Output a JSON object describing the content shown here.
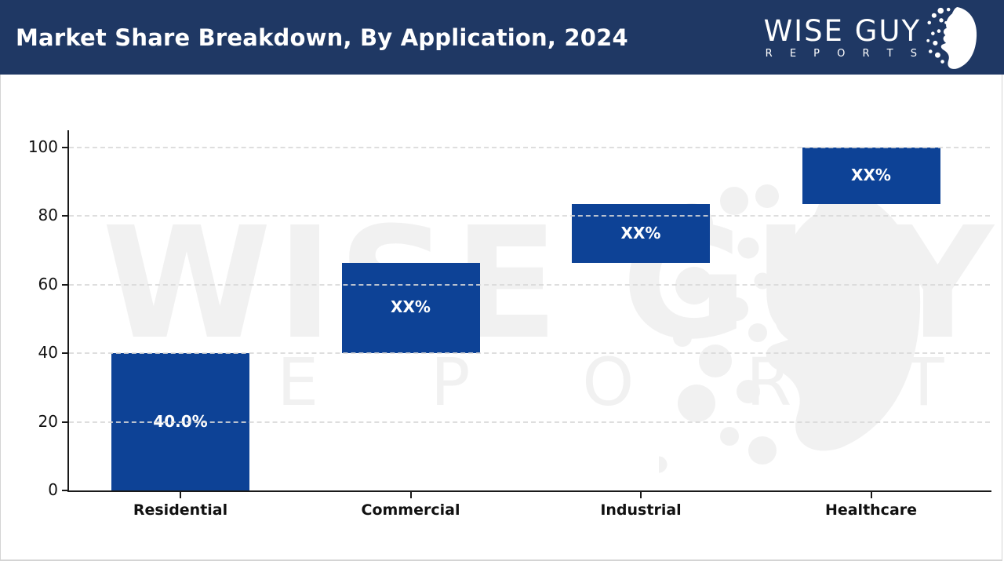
{
  "header": {
    "title": "Market Share Breakdown, By Application, 2024",
    "logo": {
      "line1": "WISE GUY",
      "line2": "R E P O R T S",
      "head_icon": "dotted-head-profile"
    }
  },
  "watermark": {
    "line1": "WISE GUY",
    "line2": "R E P O R T S",
    "head_icon": "dotted-head-profile"
  },
  "colors": {
    "header_bg": "#1f3864",
    "bar_fill": "#0d4296",
    "gridline": "#d9d9d9",
    "axis": "#1a1a1a",
    "bar_label_text": "#ffffff",
    "watermark": "#f1f1f1",
    "frame_border": "#d4d4d4"
  },
  "chart_data": {
    "type": "bar",
    "subtype": "waterfall",
    "title": "Market Share Breakdown, By Application, 2024",
    "categories": [
      "Residential",
      "Commercial",
      "Industrial",
      "Healthcare"
    ],
    "segments": [
      {
        "category": "Residential",
        "start": 0,
        "end": 40,
        "label": "40.0%"
      },
      {
        "category": "Commercial",
        "start": 40,
        "end": 66.3,
        "label": "XX%"
      },
      {
        "category": "Industrial",
        "start": 66.3,
        "end": 83.4,
        "label": "XX%"
      },
      {
        "category": "Healthcare",
        "start": 83.4,
        "end": 100,
        "label": "XX%"
      }
    ],
    "xlabel": "",
    "ylabel": "",
    "ylim": [
      0,
      100
    ],
    "yticks": [
      0,
      20,
      40,
      60,
      80,
      100
    ],
    "grid": "horizontal dashed",
    "legend": "none"
  }
}
